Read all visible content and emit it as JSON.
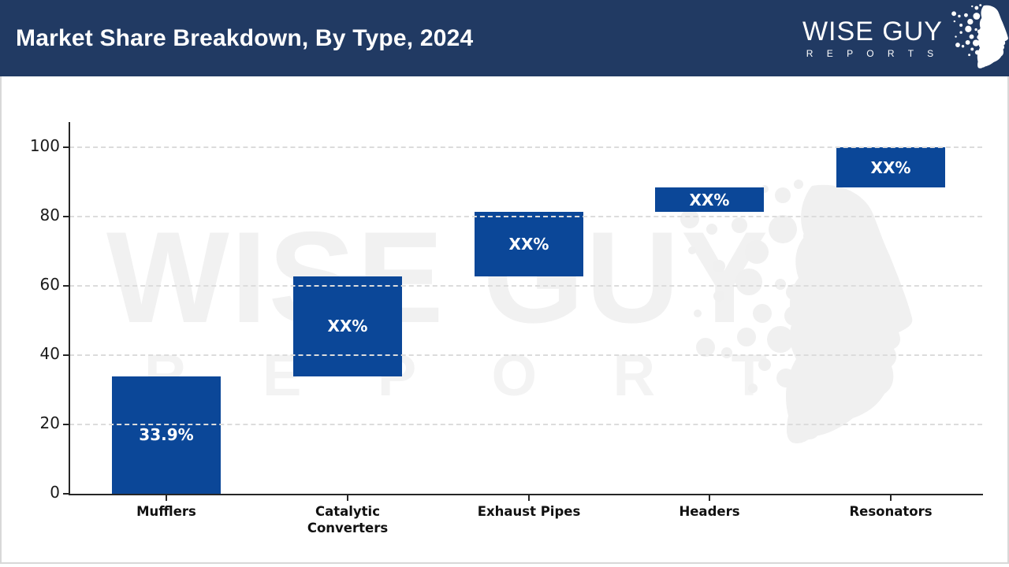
{
  "header": {
    "title": "Market Share Breakdown, By Type, 2024",
    "logo": {
      "wordmark": "WISE GUY",
      "sub": "R E P O R T S"
    }
  },
  "watermark": {
    "line1": "WISE GUY",
    "line2": "R E P O R T S"
  },
  "colors": {
    "header_bg": "#213a63",
    "bar": "#0b4798",
    "bar_label": "#ffffff",
    "grid": "#dcdcdc",
    "axis": "#262626",
    "tick_text": "#1a1a1a",
    "watermark": "#f1f1f1",
    "border": "#d8d8d8"
  },
  "chart_data": {
    "type": "bar",
    "subtype": "waterfall",
    "title": "Market Share Breakdown, By Type, 2024",
    "categories": [
      "Mufflers",
      "Catalytic Converters",
      "Exhaust Pipes",
      "Headers",
      "Resonators"
    ],
    "segments": [
      {
        "category": "Mufflers",
        "start": 0,
        "end": 33.9,
        "label": "33.9%"
      },
      {
        "category": "Catalytic Converters",
        "start": 33.9,
        "end": 62.8,
        "label": "XX%"
      },
      {
        "category": "Exhaust Pipes",
        "start": 62.8,
        "end": 81.3,
        "label": "XX%"
      },
      {
        "category": "Headers",
        "start": 81.3,
        "end": 88.3,
        "label": "XX%"
      },
      {
        "category": "Resonators",
        "start": 88.3,
        "end": 100,
        "label": "XX%"
      }
    ],
    "y_ticks": [
      0,
      20,
      40,
      60,
      80,
      100
    ],
    "ylim": [
      0,
      107
    ],
    "xlabel": "",
    "ylabel": "",
    "grid": "horizontal-dashed",
    "legend": "none",
    "bar_color": "#0b4798"
  }
}
